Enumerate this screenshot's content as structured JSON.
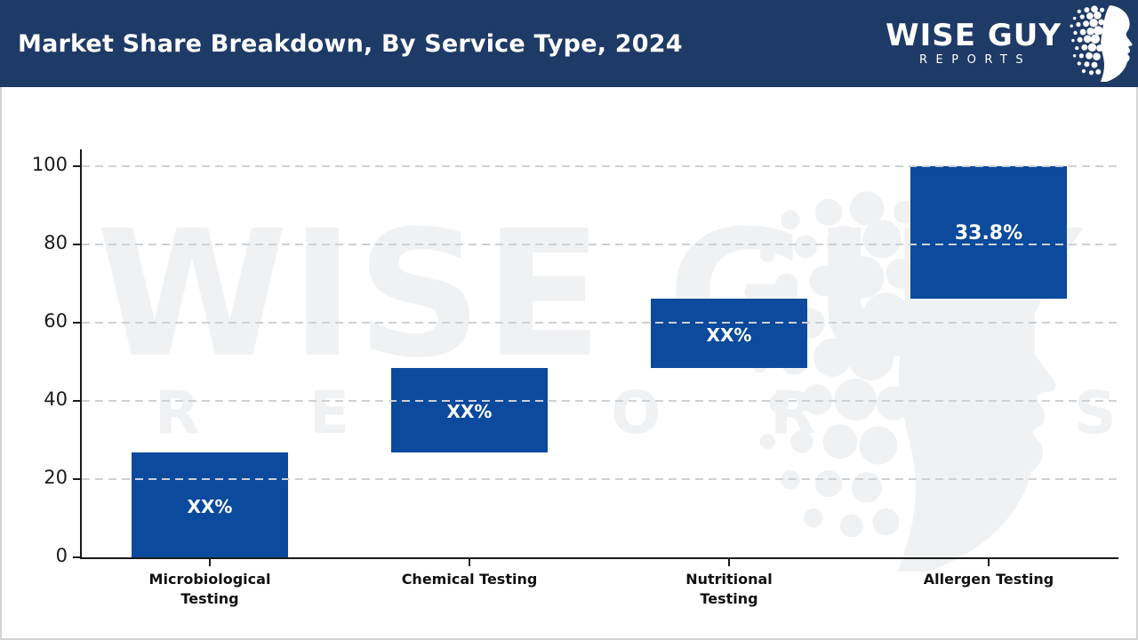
{
  "header": {
    "background": "#1e3a66",
    "title": "Market Share Breakdown, By Service Type, 2024",
    "logo": {
      "name": "WISE GUY",
      "sub": "REPORTS"
    }
  },
  "watermark": {
    "line1": "WISE GUY",
    "line2": "R E P O R T S",
    "color": "#f0f1f3"
  },
  "chart_data": {
    "type": "bar",
    "variant": "waterfall",
    "title": "Market Share Breakdown, By Service Type, 2024",
    "categories": [
      "Microbiological Testing",
      "Chemical Testing",
      "Nutritional Testing",
      "Allergen Testing"
    ],
    "category_lines": [
      [
        "Microbiological",
        "Testing"
      ],
      [
        "Chemical Testing"
      ],
      [
        "Nutritional",
        "Testing"
      ],
      [
        "Allergen Testing"
      ]
    ],
    "bars": [
      {
        "category": "Microbiological Testing",
        "start": 0,
        "end": 26.8,
        "label": "XX%"
      },
      {
        "category": "Chemical Testing",
        "start": 26.8,
        "end": 48.5,
        "label": "XX%"
      },
      {
        "category": "Nutritional Testing",
        "start": 48.5,
        "end": 66.2,
        "label": "XX%"
      },
      {
        "category": "Allergen Testing",
        "start": 66.2,
        "end": 100,
        "label": "33.8%"
      }
    ],
    "xlabel": "",
    "ylabel": "",
    "ylim": [
      0,
      100
    ],
    "yticks": [
      0,
      20,
      40,
      60,
      80,
      100
    ],
    "grid": {
      "axis": "y",
      "style": "dashed",
      "color": "#cdd1d6",
      "drawn_over_bars": true
    },
    "legend": "none",
    "bar_color": "#0b4a9c",
    "bar_label_color": "#ffffff",
    "axis_color": "#1a1a1a"
  }
}
